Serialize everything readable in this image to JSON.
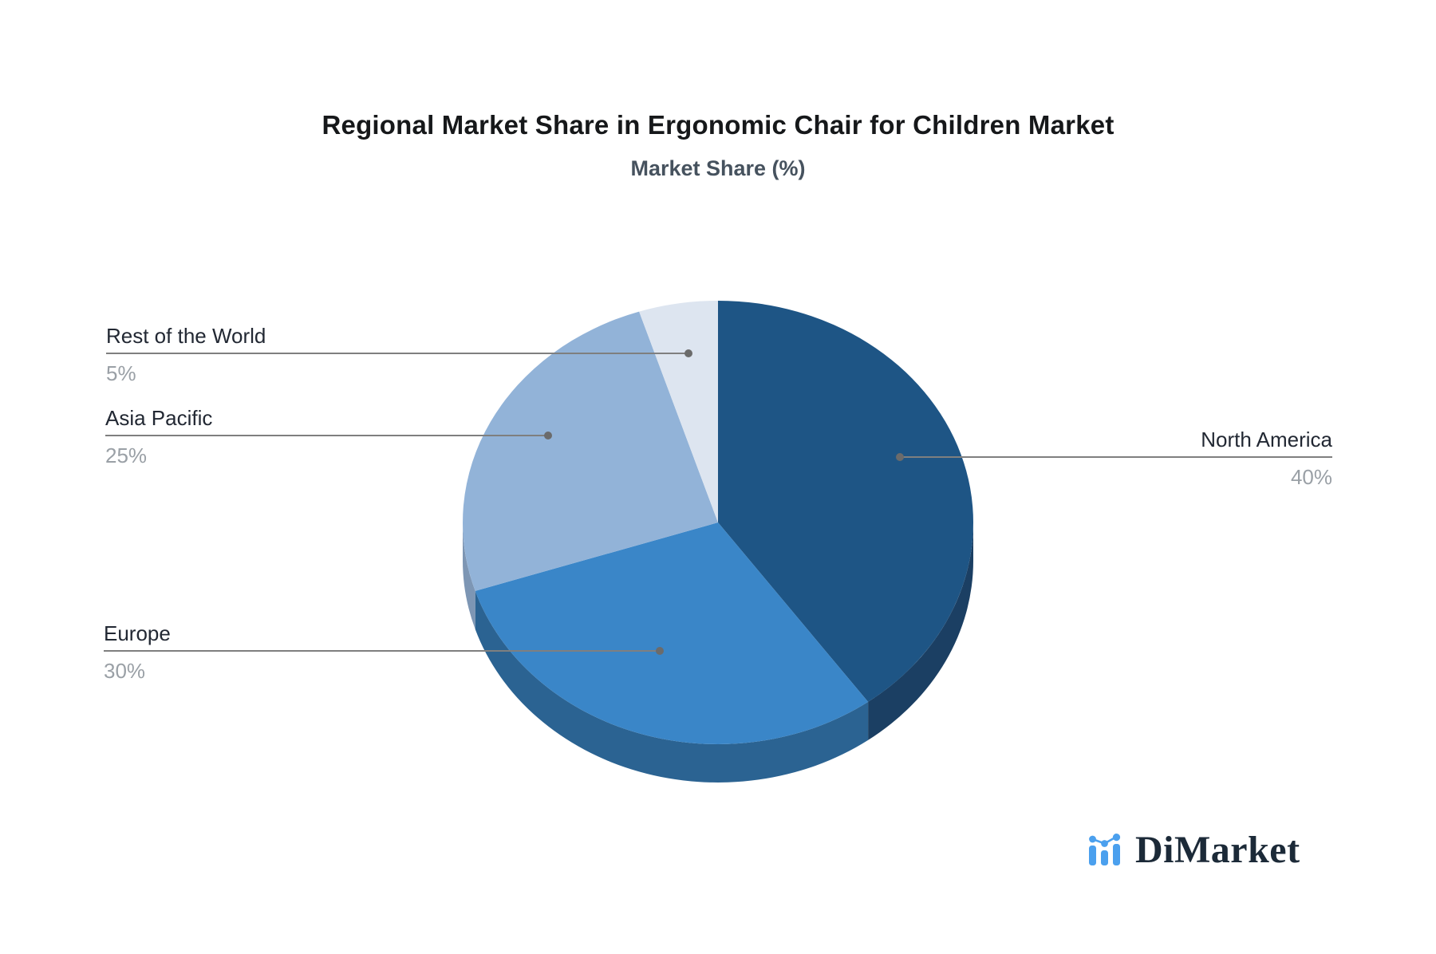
{
  "chart_data": {
    "type": "pie",
    "title": "Regional Market Share in Ergonomic Chair for Children Market",
    "subtitle": "Market Share (%)",
    "unit": "%",
    "start_angle_deg": 0,
    "direction": "clockwise",
    "effect": "3d",
    "legend_position": "none",
    "slices": [
      {
        "label": "North America",
        "value": 40,
        "pct_label": "40%",
        "color": "#1e5585",
        "side_color": "#1b3f63"
      },
      {
        "label": "Europe",
        "value": 30,
        "pct_label": "30%",
        "color": "#3a86c8",
        "side_color": "#2b6392"
      },
      {
        "label": "Asia Pacific",
        "value": 25,
        "pct_label": "25%",
        "color": "#92b3d8",
        "side_color": "#7d96b4"
      },
      {
        "label": "Rest of the World",
        "value": 5,
        "pct_label": "5%",
        "color": "#dde5f0",
        "side_color": "#b9c5d8"
      }
    ],
    "label_text_color": "#222833",
    "pct_text_color": "#9aa0a6",
    "leader_line_color": "#7f7f7f"
  },
  "watermark": {
    "brand": "DiMarket",
    "icon": "bar-chart-trend-icon",
    "icon_color": "#4ba0ee",
    "text_color": "#1c2a38"
  }
}
